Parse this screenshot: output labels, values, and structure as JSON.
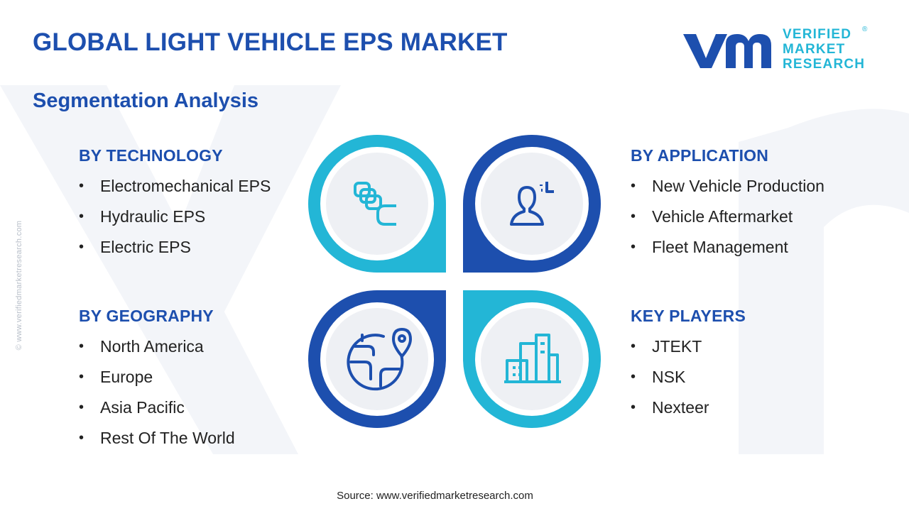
{
  "header": {
    "title": "GLOBAL LIGHT VEHICLE EPS MARKET",
    "subtitle": "Segmentation Analysis"
  },
  "logo": {
    "line1": "VERIFIED",
    "line2": "MARKET",
    "line3": "RESEARCH",
    "registered": "®"
  },
  "side_text": "© www.verifiedmarketresearch.com",
  "segments": {
    "technology": {
      "heading": "BY TECHNOLOGY",
      "items": [
        "Electromechanical EPS",
        "Hydraulic EPS",
        "Electric EPS"
      ]
    },
    "application": {
      "heading": "BY APPLICATION",
      "items": [
        "New Vehicle Production",
        "Vehicle Aftermarket",
        "Fleet Management"
      ]
    },
    "geography": {
      "heading": "BY GEOGRAPHY",
      "items": [
        "North America",
        "Europe",
        "Asia Pacific",
        "Rest Of The World"
      ]
    },
    "key_players": {
      "heading": "KEY PLAYERS",
      "items": [
        "JTEKT",
        "NSK",
        "Nexteer"
      ]
    }
  },
  "diagram": {
    "icons": [
      "chain-links-icon",
      "person-target-icon",
      "globe-location-icon",
      "city-buildings-icon"
    ]
  },
  "colors": {
    "navy": "#1d4fae",
    "cyan": "#23b6d6",
    "text": "#222222",
    "circle_fill": "#eef0f4"
  },
  "footer": {
    "source": "Source: www.verifiedmarketresearch.com"
  }
}
